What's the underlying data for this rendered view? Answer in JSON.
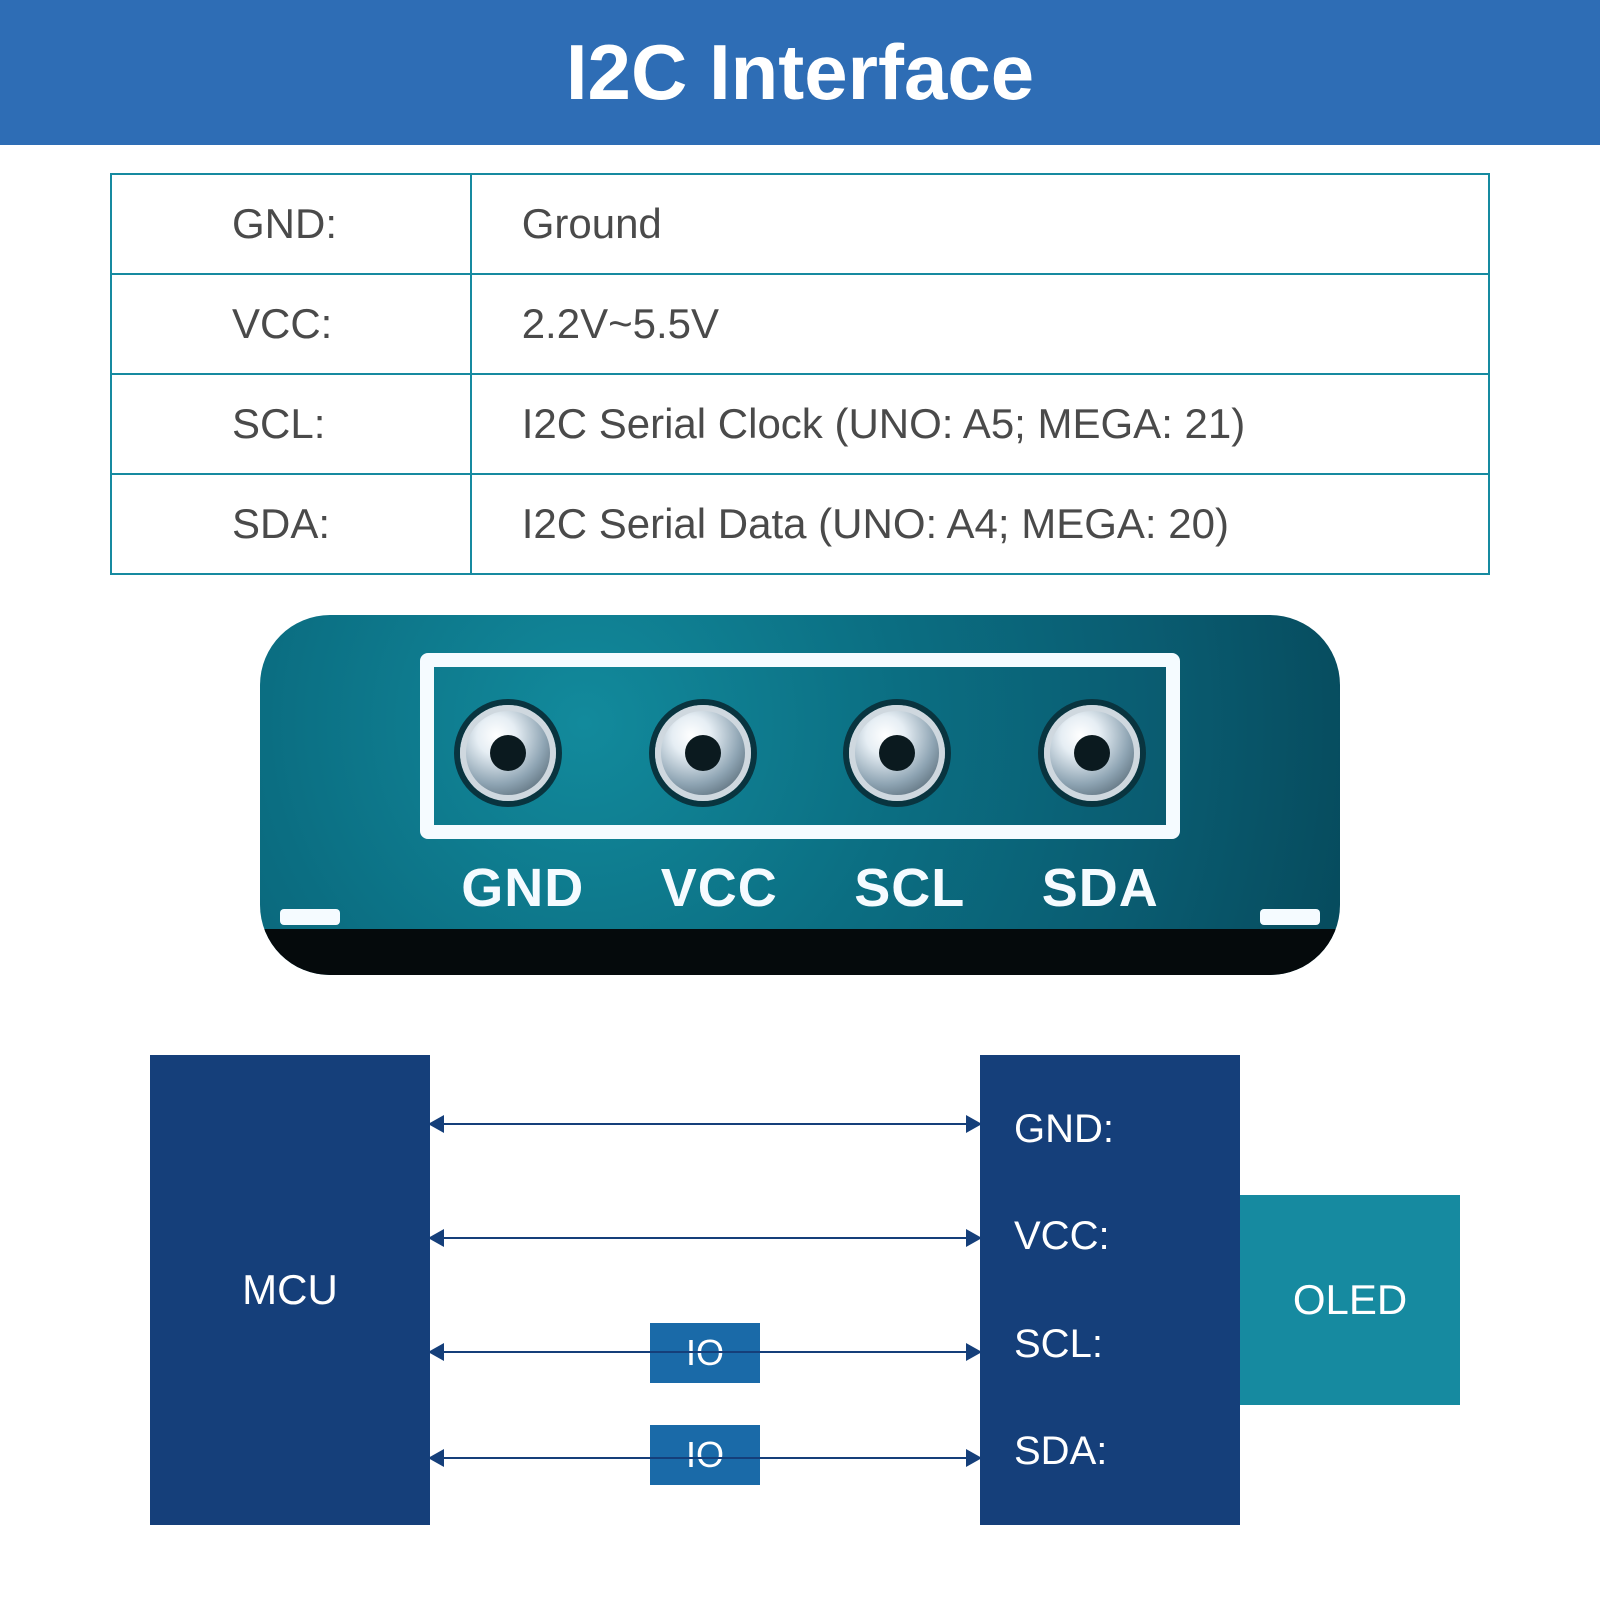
{
  "colors": {
    "header_bg": "#2e6db5",
    "table_border": "#168aa0",
    "text_gray": "#4a4a4a",
    "mcu_block": "#153f7a",
    "pins_block": "#153f7a",
    "io_block": "#1a6aa8",
    "oled_block": "#168aa0",
    "wire": "#153f7a"
  },
  "header": {
    "title": "I2C Interface"
  },
  "table": {
    "rows": [
      {
        "pin": "GND:",
        "desc": "Ground"
      },
      {
        "pin": "VCC:",
        "desc": "2.2V~5.5V"
      },
      {
        "pin": "SCL:",
        "desc": "I2C Serial Clock (UNO: A5; MEGA: 21)"
      },
      {
        "pin": "SDA:",
        "desc": "I2C Serial Data (UNO: A4; MEGA: 20)"
      }
    ]
  },
  "pcb": {
    "labels": [
      "GND",
      "VCC",
      "SCL",
      "SDA"
    ]
  },
  "diagram": {
    "mcu_label": "MCU",
    "oled_label": "OLED",
    "io_label": "IO",
    "pin_labels": [
      "GND:",
      "VCC:",
      "SCL:",
      "SDA:"
    ],
    "wires_y": [
      78,
      192,
      306,
      412
    ],
    "wire_x_start": 320,
    "wire_x_end": 870
  }
}
